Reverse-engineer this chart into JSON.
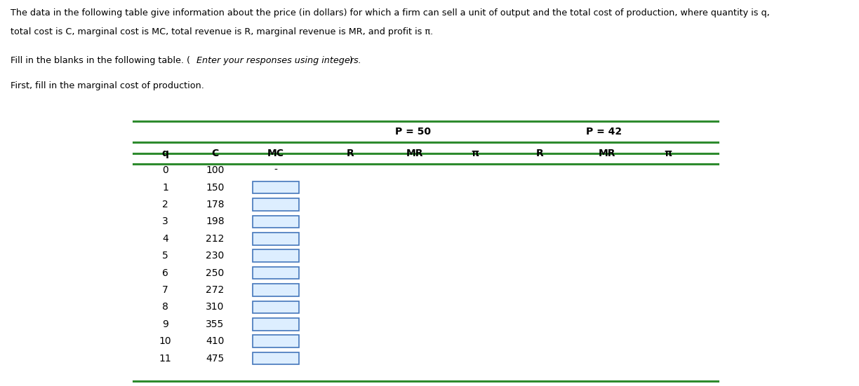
{
  "title_line1": "The data in the following table give information about the price (in dollars) for which a firm can sell a unit of output and the total cost of production, where quantity is q,",
  "title_line2": "total cost is C, marginal cost is MC, total revenue is R, marginal revenue is MR, and profit is π.",
  "subtitle1a": "Fill in the blanks in the following table. (",
  "subtitle1b": "Enter your responses using integers.",
  "subtitle1c": ")",
  "subtitle2": "First, fill in the marginal cost of production.",
  "bg_color": "#ffffff",
  "table_line_color": "#2e8b2e",
  "text_color": "#000000",
  "header1_P50": "P = 50",
  "header1_P42": "P = 42",
  "col_headers": [
    "q",
    "C",
    "MC",
    "R",
    "MR",
    "π",
    "R",
    "MR",
    "π"
  ],
  "q_values": [
    0,
    1,
    2,
    3,
    4,
    5,
    6,
    7,
    8,
    9,
    10,
    11
  ],
  "C_values": [
    100,
    150,
    178,
    198,
    212,
    230,
    250,
    272,
    310,
    355,
    410,
    475
  ],
  "MC_row0": "-",
  "box_color": "#ddeeff",
  "box_border_color": "#4477bb",
  "figsize": [
    12.24,
    5.51
  ],
  "dpi": 100
}
